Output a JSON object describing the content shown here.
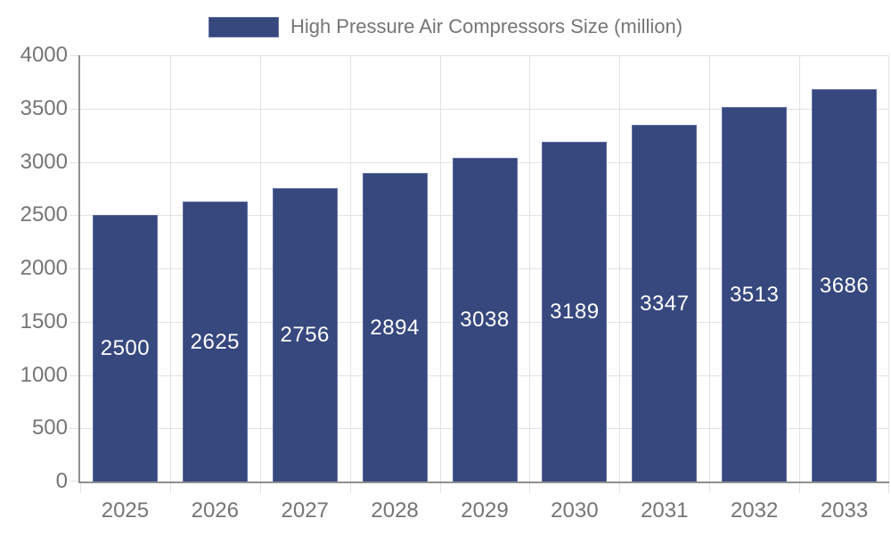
{
  "legend": {
    "label": "High Pressure Air Compressors Size (million)"
  },
  "colors": {
    "background": "#ffffff",
    "bar": "#36487e",
    "bar_border": "#5f6fa0",
    "grid": "#e2e2e2",
    "axis": "#8f8f8f",
    "tick_text": "#757575",
    "value_label": "#ffffff"
  },
  "chart_data": {
    "type": "bar",
    "title": "High Pressure Air Compressors Size (million)",
    "categories": [
      "2025",
      "2026",
      "2027",
      "2028",
      "2029",
      "2030",
      "2031",
      "2032",
      "2033"
    ],
    "values": [
      2500,
      2625,
      2756,
      2894,
      3038,
      3189,
      3347,
      3513,
      3686
    ],
    "xlabel": "",
    "ylabel": "",
    "ylim": [
      0,
      4000
    ],
    "yticks": [
      0,
      500,
      1000,
      1500,
      2000,
      2500,
      3000,
      3500,
      4000
    ],
    "grid": true,
    "legend_position": "top-center",
    "value_label_position": "inside-center"
  }
}
